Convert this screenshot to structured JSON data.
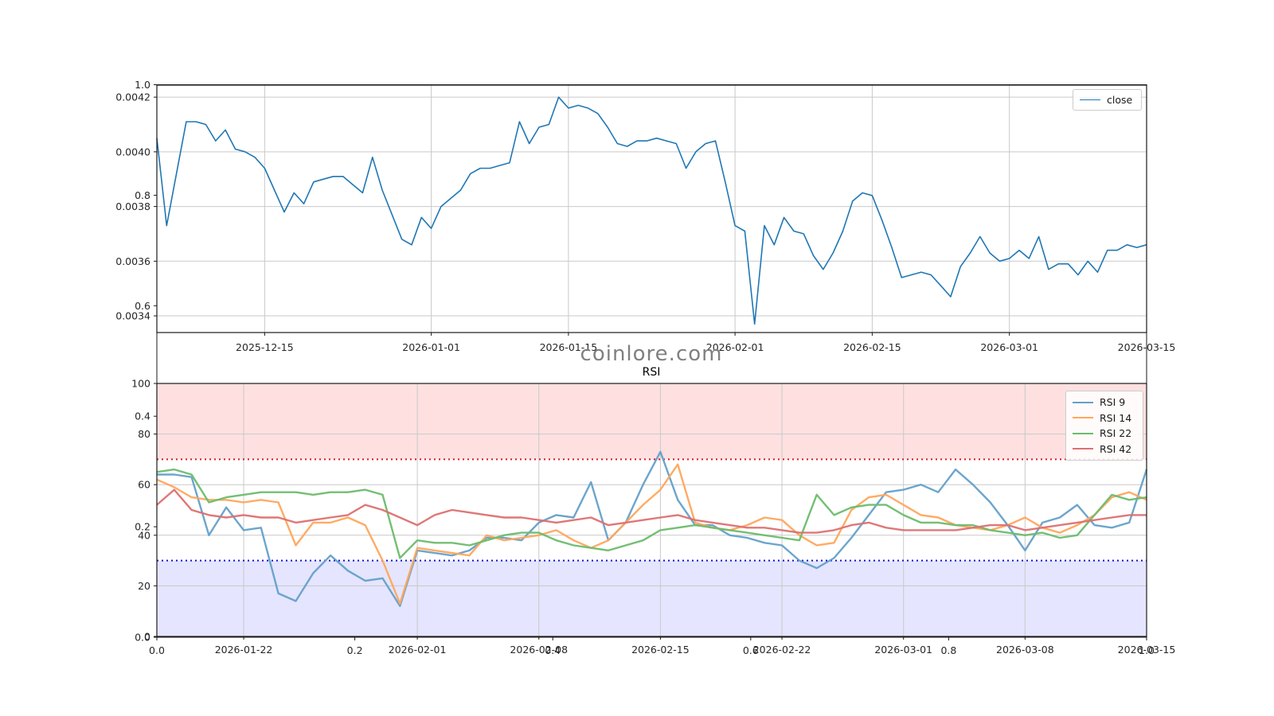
{
  "watermark": "coinlore.com",
  "colors": {
    "grid": "#c9c9c9",
    "spine": "#1a1a1a",
    "tick_label": "#262626",
    "close_line": "#1f77b4",
    "rsi9_line": "#64a0ca",
    "rsi14_line": "#ffa65c",
    "rsi22_line": "#6cbc6c",
    "rsi42_line": "#dd7070",
    "overbought_fill": "rgba(255,0,0,0.12)",
    "oversold_fill": "rgba(0,0,255,0.10)",
    "overbought_line": "#d21a2e",
    "oversold_line": "#1414cc",
    "watermark_color": "#808080"
  },
  "overlay_axis": {
    "x_tick_labels": [
      "0.0",
      "0.2",
      "0.4",
      "0.6",
      "0.8",
      "1.0"
    ],
    "y_tick_labels": [
      "1.0",
      "0.8",
      "0.6",
      "0.4",
      "0.2",
      "0.0"
    ]
  },
  "chart_data": [
    {
      "type": "line",
      "name": "price",
      "title": "",
      "legend_position": "upper right",
      "grid": true,
      "start_date": "2025-12-04",
      "frequency": "daily",
      "end_date": "2026-03-15",
      "ylim": [
        0.003339,
        0.004244
      ],
      "y_ticks": [
        {
          "value": 0.0042,
          "label": "0.0042"
        },
        {
          "value": 0.004,
          "label": "0.0040"
        },
        {
          "value": 0.0038,
          "label": "0.0038"
        },
        {
          "value": 0.0036,
          "label": "0.0036"
        },
        {
          "value": 0.0034,
          "label": "0.0034"
        }
      ],
      "x_ticks": [
        {
          "index": 11,
          "label": "2025-12-15"
        },
        {
          "index": 28,
          "label": "2026-01-01"
        },
        {
          "index": 42,
          "label": "2026-01-15"
        },
        {
          "index": 59,
          "label": "2026-02-01"
        },
        {
          "index": 73,
          "label": "2026-02-15"
        },
        {
          "index": 87,
          "label": "2026-03-01"
        },
        {
          "index": 101,
          "label": "2026-03-15"
        }
      ],
      "series": [
        {
          "name": "close",
          "color": "#1f77b4",
          "width": 1.6,
          "values": [
            0.00405,
            0.00373,
            0.00392,
            0.00411,
            0.00411,
            0.0041,
            0.00404,
            0.00408,
            0.00401,
            0.004,
            0.00398,
            0.00394,
            0.00386,
            0.00378,
            0.00385,
            0.00381,
            0.00389,
            0.0039,
            0.00391,
            0.00391,
            0.00388,
            0.00385,
            0.00398,
            0.00386,
            0.00377,
            0.00368,
            0.00366,
            0.00376,
            0.00372,
            0.0038,
            0.00383,
            0.00386,
            0.00392,
            0.00394,
            0.00394,
            0.00395,
            0.00396,
            0.00411,
            0.00403,
            0.00409,
            0.0041,
            0.0042,
            0.00416,
            0.00417,
            0.00416,
            0.00414,
            0.00409,
            0.00403,
            0.00402,
            0.00404,
            0.00404,
            0.00405,
            0.00404,
            0.00403,
            0.00394,
            0.004,
            0.00403,
            0.00404,
            0.00389,
            0.00373,
            0.00371,
            0.00337,
            0.00373,
            0.00366,
            0.00376,
            0.00371,
            0.0037,
            0.00362,
            0.00357,
            0.00363,
            0.00371,
            0.00382,
            0.00385,
            0.00384,
            0.00375,
            0.00365,
            0.00354,
            0.00355,
            0.00356,
            0.00355,
            0.00351,
            0.00347,
            0.00358,
            0.00363,
            0.00369,
            0.00363,
            0.0036,
            0.00361,
            0.00364,
            0.00361,
            0.00369,
            0.00357,
            0.00359,
            0.00359,
            0.00355,
            0.0036,
            0.00356,
            0.00364,
            0.00364,
            0.00366,
            0.00365,
            0.00366
          ]
        }
      ]
    },
    {
      "type": "line",
      "name": "rsi",
      "title": "RSI",
      "legend_position": "upper right",
      "grid": true,
      "start_date": "2026-01-17",
      "frequency": "daily",
      "end_date": "2026-03-15",
      "ylim": [
        0,
        100
      ],
      "bands": {
        "overbought_from": 70,
        "overbought_to": 100,
        "oversold_from": 0,
        "oversold_to": 30
      },
      "threshold_lines": [
        {
          "value": 70,
          "style": "dotted",
          "color_key": "overbought_line"
        },
        {
          "value": 30,
          "style": "dotted",
          "color_key": "oversold_line"
        }
      ],
      "y_ticks": [
        {
          "value": 100,
          "label": "100"
        },
        {
          "value": 80,
          "label": "80"
        },
        {
          "value": 60,
          "label": "60"
        },
        {
          "value": 40,
          "label": "40"
        },
        {
          "value": 20,
          "label": "20"
        },
        {
          "value": 0,
          "label": "0"
        }
      ],
      "x_ticks": [
        {
          "index": 5,
          "label": "2026-01-22"
        },
        {
          "index": 15,
          "label": "2026-02-01"
        },
        {
          "index": 22,
          "label": "2026-02-08"
        },
        {
          "index": 29,
          "label": "2026-02-15"
        },
        {
          "index": 36,
          "label": "2026-02-22"
        },
        {
          "index": 43,
          "label": "2026-03-01"
        },
        {
          "index": 50,
          "label": "2026-03-08"
        },
        {
          "index": 57,
          "label": "2026-03-15"
        }
      ],
      "series": [
        {
          "name": "RSI 9",
          "color": "#64a0ca",
          "width": 2.4,
          "values": [
            64,
            64,
            63,
            40,
            51,
            42,
            43,
            17,
            14,
            25,
            32,
            26,
            22,
            23,
            12,
            34,
            33,
            32,
            34,
            39,
            39,
            38,
            45,
            48,
            47,
            61,
            38,
            45,
            60,
            73,
            54,
            44,
            44,
            40,
            39,
            37,
            36,
            30,
            27,
            31,
            39,
            48,
            57,
            58,
            60,
            57,
            66,
            60,
            53,
            44,
            34,
            45,
            47,
            52,
            44,
            43,
            45,
            66
          ]
        },
        {
          "name": "RSI 14",
          "color": "#ffa65c",
          "width": 2.4,
          "values": [
            62,
            59,
            55,
            54,
            54,
            53,
            54,
            53,
            36,
            45,
            45,
            47,
            44,
            30,
            13,
            35,
            34,
            33,
            32,
            40,
            38,
            39,
            40,
            42,
            38,
            35,
            38,
            45,
            52,
            58,
            68,
            45,
            43,
            42,
            44,
            47,
            46,
            40,
            36,
            37,
            50,
            55,
            56,
            52,
            48,
            47,
            44,
            43,
            42,
            44,
            47,
            43,
            41,
            44,
            48,
            55,
            57,
            54
          ]
        },
        {
          "name": "RSI 22",
          "color": "#6cbc6c",
          "width": 2.4,
          "values": [
            65,
            66,
            64,
            53,
            55,
            56,
            57,
            57,
            57,
            56,
            57,
            57,
            58,
            56,
            31,
            38,
            37,
            37,
            36,
            38,
            40,
            41,
            41,
            38,
            36,
            35,
            34,
            36,
            38,
            42,
            43,
            44,
            43,
            42,
            41,
            40,
            39,
            38,
            56,
            48,
            51,
            52,
            52,
            48,
            45,
            45,
            44,
            44,
            42,
            41,
            40,
            41,
            39,
            40,
            48,
            56,
            54,
            55
          ]
        },
        {
          "name": "RSI 42",
          "color": "#dd7070",
          "width": 2.4,
          "values": [
            52,
            58,
            50,
            48,
            47,
            48,
            47,
            47,
            45,
            46,
            47,
            48,
            52,
            50,
            47,
            44,
            48,
            50,
            49,
            48,
            47,
            47,
            46,
            45,
            46,
            47,
            44,
            45,
            46,
            47,
            48,
            46,
            45,
            44,
            43,
            43,
            42,
            41,
            41,
            42,
            44,
            45,
            43,
            42,
            42,
            42,
            42,
            43,
            44,
            44,
            42,
            43,
            44,
            45,
            46,
            47,
            48,
            48
          ]
        }
      ]
    }
  ]
}
